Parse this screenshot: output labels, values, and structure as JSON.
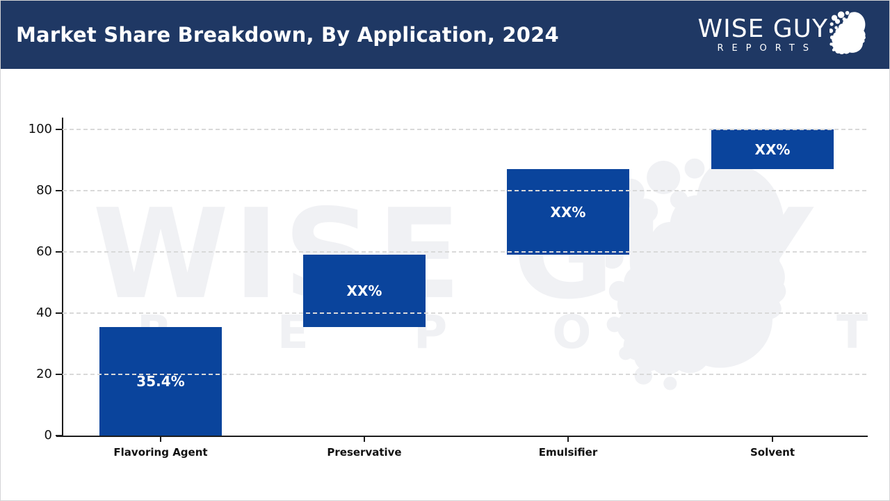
{
  "header": {
    "title": "Market Share Breakdown, By Application, 2024",
    "logo": {
      "wordmark": "WISE GUY",
      "subtext": "REPORTS",
      "icon": "dotted-head-profile-icon"
    }
  },
  "watermark": {
    "wordmark": "WISE GUY",
    "subtext": "R E P O R T S",
    "icon": "dotted-head-profile-watermark"
  },
  "chart_data": {
    "type": "bar",
    "subtype": "floating-segment-waterfall",
    "title": "Market Share Breakdown, By Application, 2024",
    "categories": [
      "Flavoring Agent",
      "Preservative",
      "Emulsifier",
      "Solvent"
    ],
    "segments": [
      {
        "category": "Flavoring Agent",
        "start": 0,
        "end": 35.4,
        "label": "35.4%"
      },
      {
        "category": "Preservative",
        "start": 35.4,
        "end": 59,
        "label": "XX%"
      },
      {
        "category": "Emulsifier",
        "start": 59,
        "end": 87,
        "label": "XX%"
      },
      {
        "category": "Solvent",
        "start": 87,
        "end": 100,
        "label": "XX%"
      }
    ],
    "xlabel": "",
    "ylabel": "",
    "yticks": [
      0,
      20,
      40,
      60,
      80,
      100
    ],
    "ylim": [
      0,
      105
    ],
    "grid": "dashed-horizontal-above-bars",
    "legend": "none",
    "colors": {
      "bar": "#0a449c",
      "bar_label": "#ffffff",
      "grid": "#d9d9d9",
      "axis": "#1c1c1c",
      "tick_text": "#111111",
      "header_bg": "#1f3864",
      "header_text": "#ffffff",
      "watermark": "#f0f1f4"
    }
  }
}
